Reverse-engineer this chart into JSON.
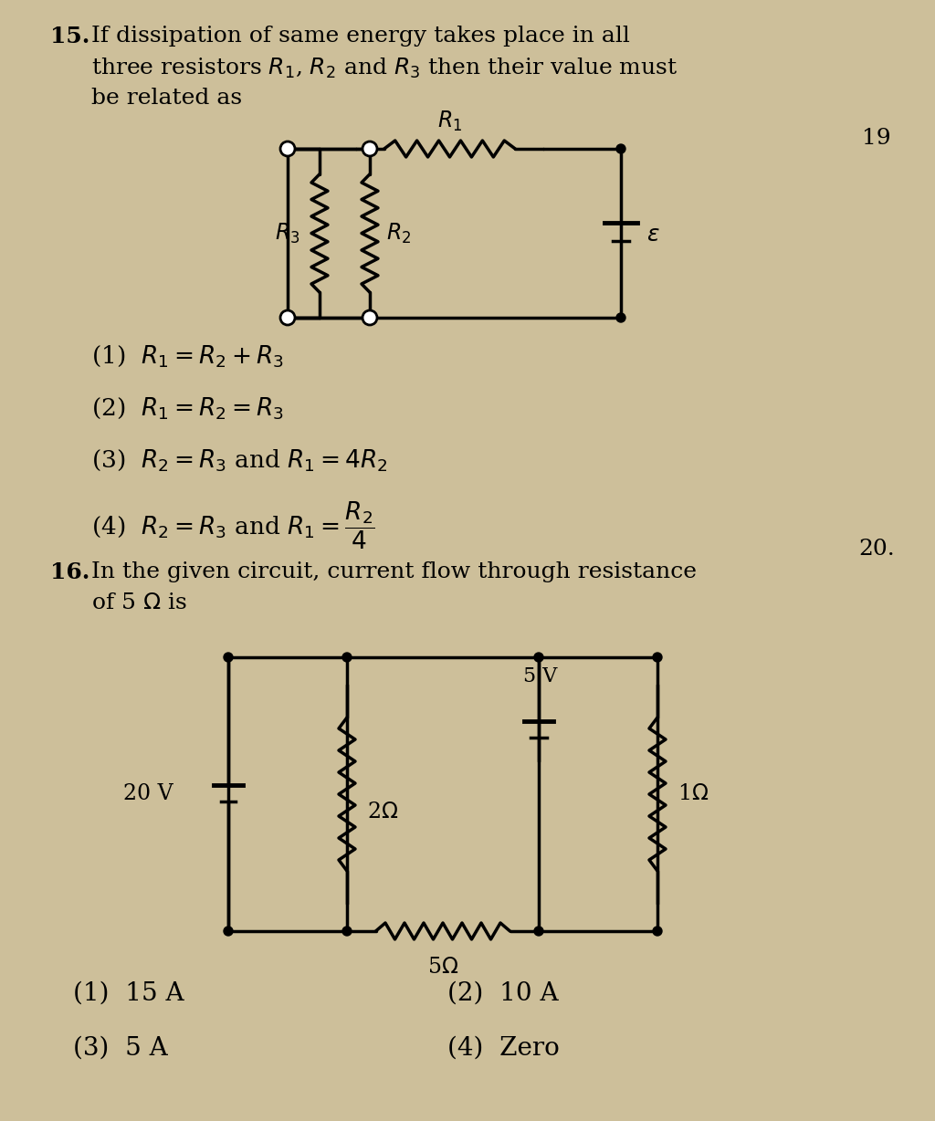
{
  "bg_color": "#cdbf9a",
  "text_color": "#000000",
  "q15_number": "15.",
  "q15_text_line1": "If dissipation of same energy takes place in all",
  "q15_text_line2": "three resistors $R_1$, $R_2$ and $R_3$ then their value must",
  "q15_text_line3": "be related as",
  "q16_number": "16.",
  "q16_text_line1": "In the given circuit, current flow through resistance",
  "q16_text_line2": "of 5 $\\Omega$ is",
  "corner_19": "19",
  "corner_20": "20"
}
